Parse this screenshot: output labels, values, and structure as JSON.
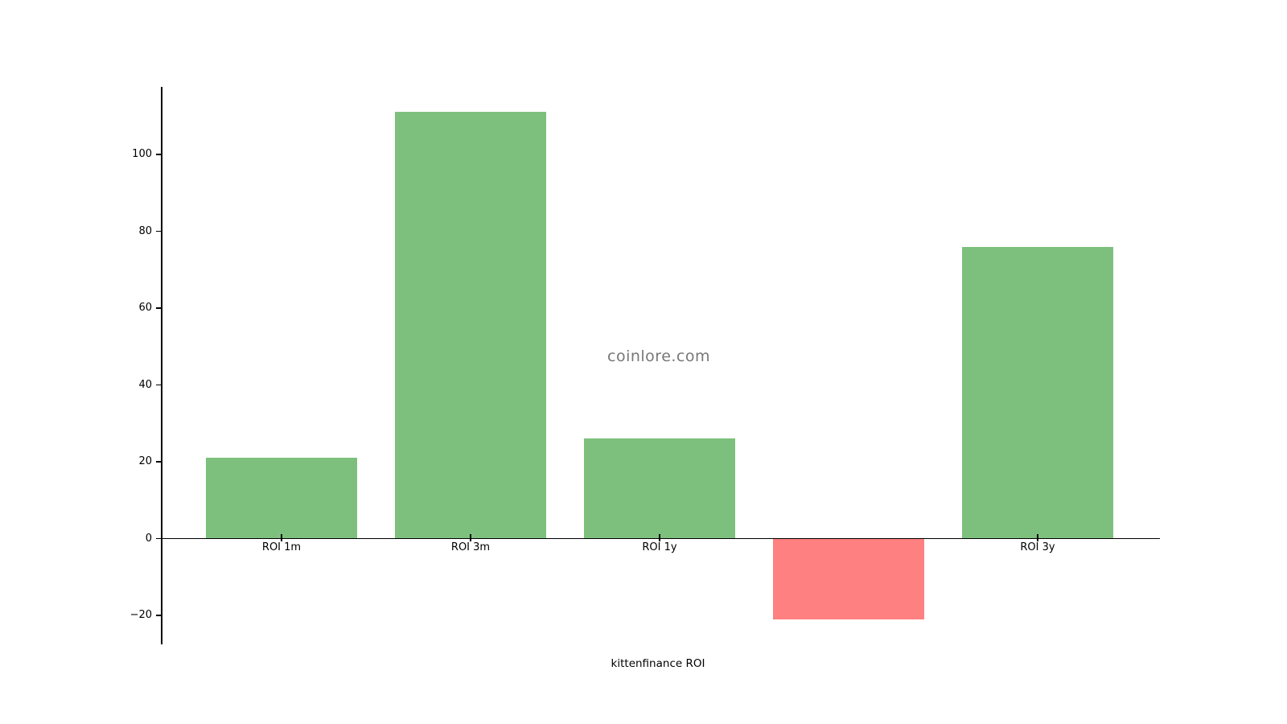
{
  "page": {
    "background": "#ffffff"
  },
  "watermark": {
    "text": "coinlore.com",
    "color": "#777777"
  },
  "chart_data": {
    "type": "bar",
    "title": "kittenfinance ROI",
    "categories": [
      "ROI 1m",
      "ROI 3m",
      "ROI 1y",
      "",
      "ROI 3y"
    ],
    "values": [
      21,
      111,
      26,
      -21,
      76
    ],
    "series": [
      {
        "name": "kittenfinance ROI",
        "values": [
          21,
          111,
          26,
          -21,
          76
        ]
      }
    ],
    "bar_colors": [
      "#7dc07d",
      "#7dc07d",
      "#7dc07d",
      "#ff8080",
      "#7dc07d"
    ],
    "positive_color": "#7dc07d",
    "negative_color": "#ff8080",
    "axis_color": "#000000",
    "yticks": [
      100,
      80,
      60,
      40,
      20,
      0,
      -20
    ],
    "ylim": [
      -27.5,
      117.6
    ],
    "xlabel": "",
    "ylabel": "",
    "grid": false,
    "legend": false,
    "note": "fourth bar (negative, red) has no x-axis tick or category label"
  }
}
